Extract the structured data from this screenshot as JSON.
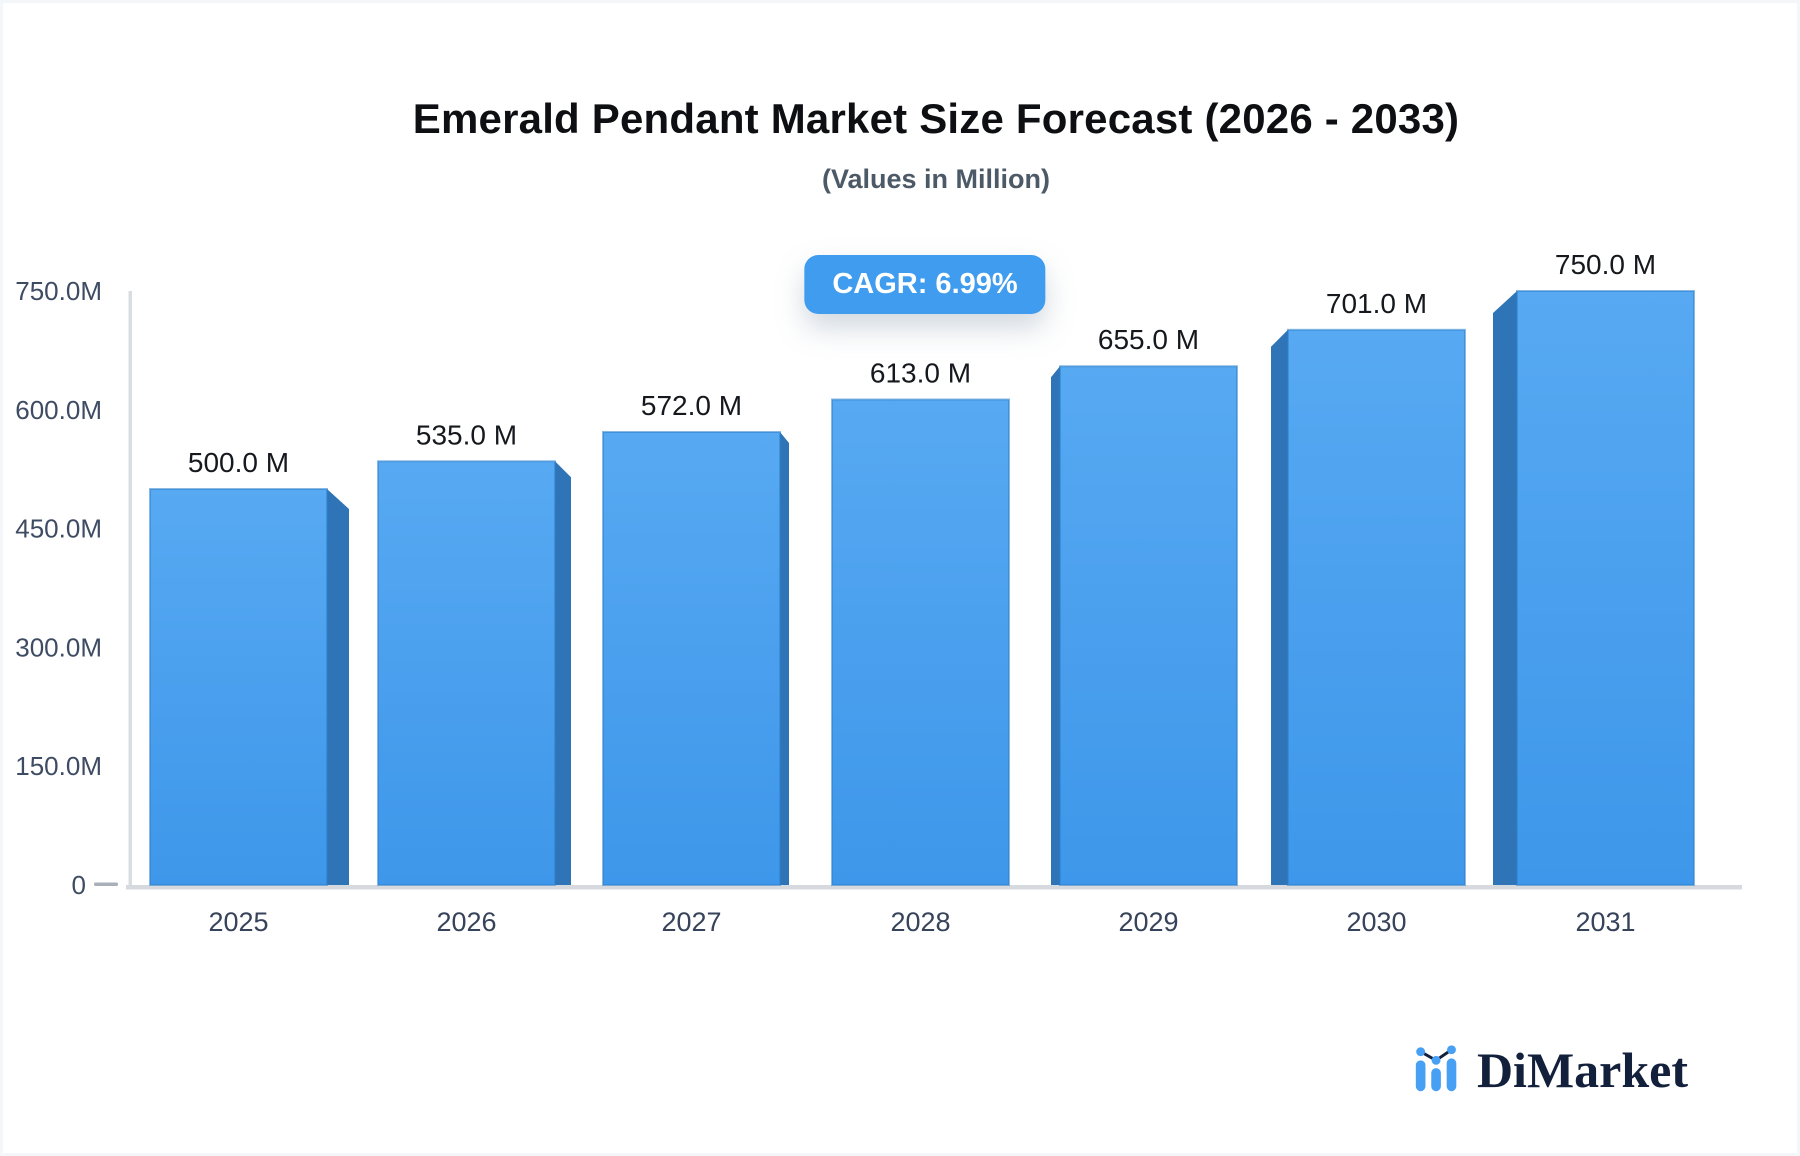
{
  "header": {
    "title": "Emerald Pendant Market Size Forecast (2026 - 2033)",
    "subtitle": "(Values in Million)"
  },
  "badge": {
    "label": "CAGR: 6.99%"
  },
  "logo": {
    "text": "DiMarket",
    "icon": "mini-bar-chart-with-dots"
  },
  "chart_data": {
    "type": "bar",
    "title": "Emerald Pendant Market Size Forecast (2026 - 2033)",
    "subtitle": "(Values in Million)",
    "unit": "Million",
    "cagr": "6.99%",
    "categories": [
      "2025",
      "2026",
      "2027",
      "2028",
      "2029",
      "2030",
      "2031"
    ],
    "values": [
      500,
      535,
      572,
      613,
      655,
      701,
      750
    ],
    "value_labels": [
      "500.0 M",
      "535.0 M",
      "572.0 M",
      "613.0 M",
      "655.0 M",
      "701.0 M",
      "750.0 M"
    ],
    "ylabel": "",
    "xlabel": "",
    "ylim": [
      0,
      750
    ],
    "yticks": [
      {
        "value": 750,
        "label": "750.0M"
      },
      {
        "value": 600,
        "label": "600.0M"
      },
      {
        "value": 450,
        "label": "450.0M"
      },
      {
        "value": 300,
        "label": "300.0M"
      },
      {
        "value": 150,
        "label": "150.0M"
      },
      {
        "value": 0,
        "label": "0"
      }
    ],
    "grid": false,
    "legend": false,
    "bar_style": "pseudo-3d, side face toward chart center"
  },
  "colors": {
    "bar_top": "#57a9f2",
    "bar_bottom": "#3e97ea",
    "bar_border": "#2e7fca",
    "bar_side": "#2e74b6",
    "axis_line": "#d9dce1",
    "baseline": "#d6d9de",
    "tick_dash": "#aab0ba",
    "axis_label": "#3e4c63",
    "category_label": "#36435a",
    "value_label": "#15181d",
    "title": "#0d0f12",
    "subtitle": "#4c5966",
    "badge_bg": "#3f9cee",
    "badge_text": "#ffffff",
    "logo_navy": "#13203c",
    "logo_blue": "#47a0f4"
  }
}
